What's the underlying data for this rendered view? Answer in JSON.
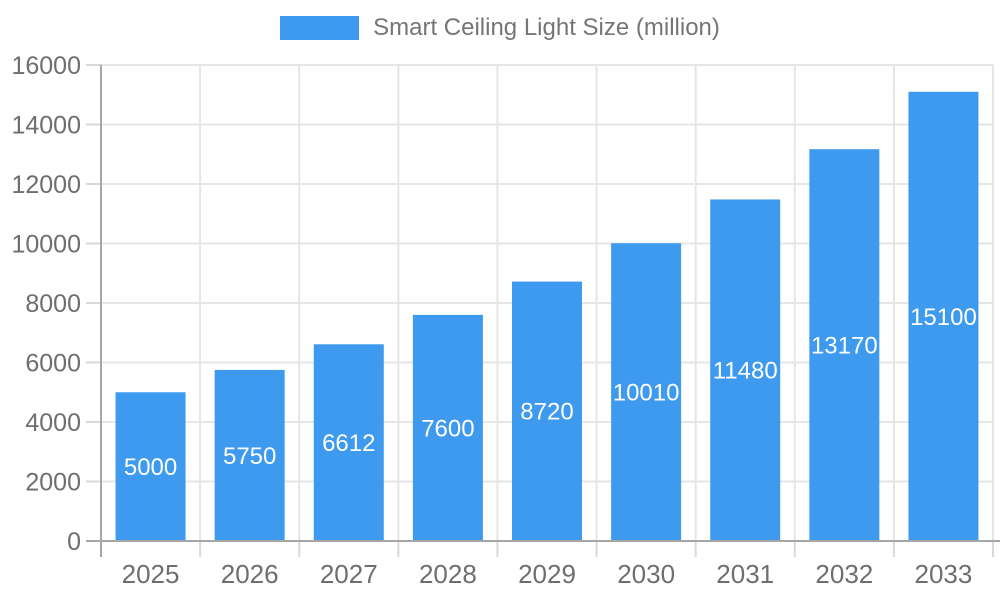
{
  "chart_data": {
    "type": "bar",
    "title": "Smart Ceiling Light Size (million)",
    "legend": {
      "position": "top",
      "label": "Smart Ceiling Light Size (million)"
    },
    "categories": [
      "2025",
      "2026",
      "2027",
      "2028",
      "2029",
      "2030",
      "2031",
      "2032",
      "2033"
    ],
    "series": [
      {
        "name": "Smart Ceiling Light Size (million)",
        "values": [
          5000,
          5750,
          6612,
          7600,
          8720,
          10010,
          11480,
          13170,
          15100
        ]
      }
    ],
    "xlabel": "",
    "ylabel": "",
    "ylim": [
      0,
      16000
    ],
    "yticks": [
      0,
      2000,
      4000,
      6000,
      8000,
      10000,
      12000,
      14000,
      16000
    ],
    "grid": true,
    "value_label_position": "inside-center",
    "colors": {
      "bar": "#3E9AEF",
      "grid": "#E6E6E6",
      "tick": "#D9D9D9",
      "axis": "#A6A6A6",
      "text": "#6E6E6E",
      "value_label": "#FFFFFF"
    }
  }
}
